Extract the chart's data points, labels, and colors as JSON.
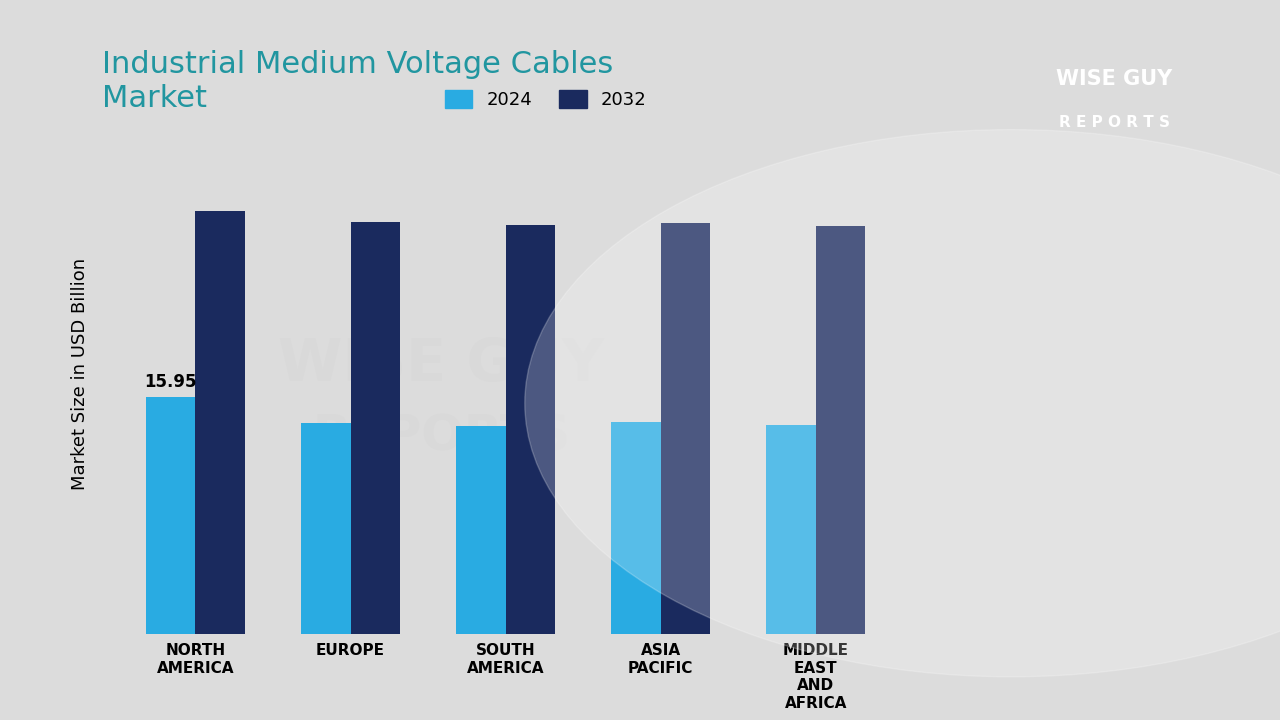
{
  "title": "Industrial Medium Voltage Cables\nMarket",
  "title_color": "#2196a0",
  "title_fontsize": 22,
  "ylabel": "Market Size in USD Billion",
  "ylabel_fontsize": 13,
  "categories": [
    "NORTH\nAMERICA",
    "EUROPE",
    "SOUTH\nAMERICA",
    "ASIA\nPACIFIC",
    "MIDDLE\nEAST\nAND\nAFRICA"
  ],
  "values_2024": [
    15.95,
    14.2,
    14.0,
    14.3,
    14.1
  ],
  "values_2032": [
    28.5,
    27.8,
    27.6,
    27.7,
    27.5
  ],
  "color_2024": "#29abe2",
  "color_2032": "#1a2a5e",
  "annotation": "15.95",
  "annotation_idx": 0,
  "background_color": "#dcdcdc",
  "right_panel_color": "#1a2a5e",
  "legend_labels": [
    "2024",
    "2032"
  ],
  "bar_width": 0.32,
  "ylim": [
    0,
    35
  ],
  "tick_fontsize": 11,
  "legend_fontsize": 13
}
